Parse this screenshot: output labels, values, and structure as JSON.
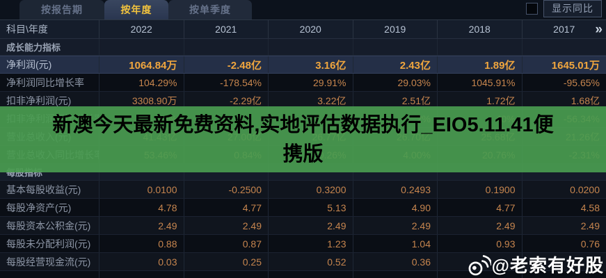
{
  "tabs": {
    "items": [
      {
        "label": "按报告期",
        "active": false
      },
      {
        "label": "按年度",
        "active": true
      },
      {
        "label": "按单季度",
        "active": false
      }
    ]
  },
  "compare": {
    "label": "显示同比",
    "checked": false
  },
  "header": {
    "corner": "科目\\年度",
    "years": [
      "2022",
      "2021",
      "2020",
      "2019",
      "2018",
      "2017"
    ],
    "more_icon": "»"
  },
  "table": {
    "sections": [
      {
        "title": "成长能力指标",
        "rows": [
          {
            "label": "净利润(元)",
            "highlight": true,
            "values": [
              "1064.84万",
              "-2.48亿",
              "3.16亿",
              "2.43亿",
              "1.89亿",
              "1645.01万"
            ]
          },
          {
            "label": "净利润同比增长率",
            "highlight": false,
            "values": [
              "104.29%",
              "-178.54%",
              "29.91%",
              "29.03%",
              "1045.91%",
              "-95.65%"
            ]
          },
          {
            "label": "扣非净利润(元)",
            "highlight": false,
            "values": [
              "3308.90万",
              "-2.29亿",
              "3.22亿",
              "2.51亿",
              "1.72亿",
              "1.68亿"
            ]
          },
          {
            "label": "扣非净利润同比增长率",
            "highlight": false,
            "values": [
              "03%",
              "",
              "",
              "2%",
              "40%",
              "-56.34%"
            ]
          },
          {
            "label": "营业总收入(元)",
            "highlight": false,
            "values": [
              "41.43亿",
              "27.00亿",
              "26.77亿",
              "26.70亿",
              "25.68亿",
              "21.26亿"
            ]
          },
          {
            "label": "营业总收入同比增长率",
            "highlight": false,
            "values": [
              "53.46%",
              "0.84%",
              "0.26%",
              "4.00%",
              "20.76%",
              "-2.31%"
            ]
          }
        ]
      },
      {
        "title": "每股指标",
        "rows": [
          {
            "label": "基本每股收益(元)",
            "highlight": false,
            "values": [
              "0.0100",
              "-0.2500",
              "0.3200",
              "0.2493",
              "0.1900",
              "0.0200"
            ]
          },
          {
            "label": "每股净资产(元)",
            "highlight": false,
            "values": [
              "4.78",
              "4.77",
              "5.13",
              "4.90",
              "4.77",
              "4.58"
            ]
          },
          {
            "label": "每股资本公积金(元)",
            "highlight": false,
            "values": [
              "2.49",
              "2.49",
              "2.49",
              "2.49",
              "2.49",
              "2.49"
            ]
          },
          {
            "label": "每股未分配利润(元)",
            "highlight": false,
            "values": [
              "0.88",
              "0.87",
              "1.23",
              "1.04",
              "0.93",
              "0.76"
            ]
          },
          {
            "label": "每股经营现金流(元)",
            "highlight": false,
            "values": [
              "0.03",
              "0.25",
              "0.52",
              "0.36",
              "",
              ""
            ]
          }
        ]
      }
    ]
  },
  "overlay": {
    "text": "新澳今天最新免费资料,实地评估数据执行_EIO5.11.41便携版",
    "lines": [
      "新澳今天最新免费资料,实地评估数据执行_EIO5.11.41便",
      "携版"
    ]
  },
  "watermark": {
    "handle": "@老索有好股",
    "icon": "weibo-eye-icon"
  },
  "colors": {
    "accent_yellow": "#f2c33e",
    "value_orange": "#c6854e",
    "highlight_orange": "#f0a63e",
    "overlay_green": "#4a9c50",
    "watermark_white": "#ffffff",
    "header_bg": "#151d2b",
    "highlight_row_bg": "#242f47"
  }
}
